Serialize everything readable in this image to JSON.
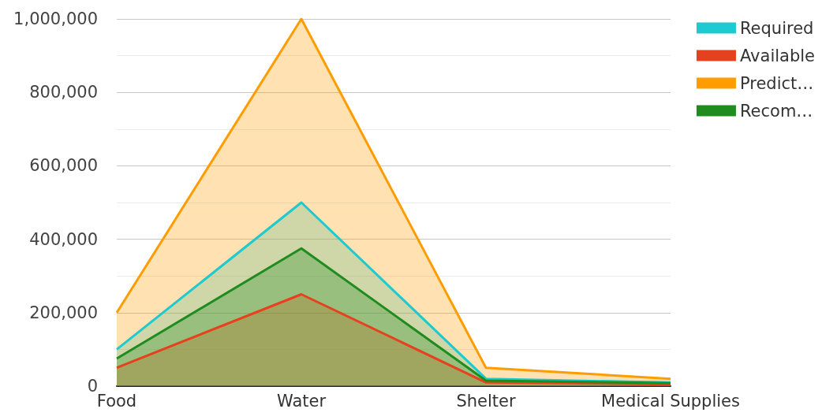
{
  "chart_data": {
    "type": "area",
    "categories": [
      "Food",
      "Water",
      "Shelter",
      "Medical Supplies"
    ],
    "series": [
      {
        "name": "Required",
        "color": "#1ccad0",
        "values": [
          100000,
          500000,
          20000,
          10000
        ]
      },
      {
        "name": "Available",
        "color": "#e6411e",
        "values": [
          50000,
          250000,
          10000,
          5000
        ]
      },
      {
        "name": "Predict…",
        "color": "#ff9d00",
        "values": [
          200000,
          1000000,
          50000,
          20000
        ]
      },
      {
        "name": "Recom…",
        "color": "#1e8c1e",
        "values": [
          75000,
          375000,
          15000,
          8000
        ]
      }
    ],
    "ylim": [
      0,
      1000000
    ],
    "yticks": [
      0,
      {
        "value": 200000,
        "label": "200,000"
      },
      {
        "value": 400000,
        "label": "400,000"
      },
      {
        "value": 600000,
        "label": "600,000"
      },
      {
        "value": 800000,
        "label": "800,000"
      },
      {
        "value": 1000000,
        "label": "1,000,000"
      }
    ],
    "grid": "y",
    "legend": "top right",
    "marker": "none"
  }
}
